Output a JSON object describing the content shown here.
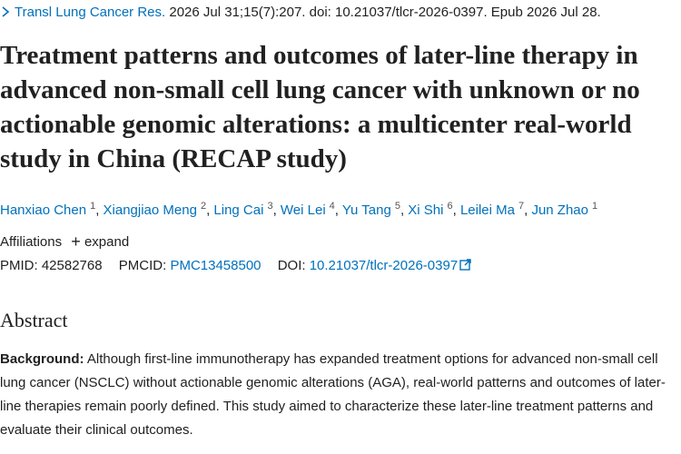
{
  "citation": {
    "journal": "Transl Lung Cancer Res.",
    "details": "2026 Jul 31;15(7):207. doi: 10.21037/tlcr-2026-0397. Epub 2026 Jul 28."
  },
  "title": "Treatment patterns and outcomes of later-line therapy in advanced non-small cell lung cancer with unknown or no actionable genomic alterations: a multicenter real-world study in China (RECAP study)",
  "authors": {
    "separator": ",",
    "list": [
      {
        "name": "Hanxiao Chen",
        "sup": "1"
      },
      {
        "name": "Xiangjiao Meng",
        "sup": "2"
      },
      {
        "name": "Ling Cai",
        "sup": "3"
      },
      {
        "name": "Wei Lei",
        "sup": "4"
      },
      {
        "name": "Yu Tang",
        "sup": "5"
      },
      {
        "name": "Xi Shi",
        "sup": "6"
      },
      {
        "name": "Leilei Ma",
        "sup": "7"
      },
      {
        "name": "Jun Zhao",
        "sup": "1"
      }
    ]
  },
  "affiliations": {
    "label": "Affiliations",
    "toggle": "expand"
  },
  "identifiers": {
    "pmid_label": "PMID:",
    "pmid": "42582768",
    "pmcid_label": "PMCID:",
    "pmcid": "PMC13458500",
    "doi_label": "DOI:",
    "doi": "10.21037/tlcr-2026-0397"
  },
  "abstract": {
    "heading": "Abstract",
    "background_label": "Background:",
    "background_text": "Although first-line immunotherapy has expanded treatment options for advanced non-small cell lung cancer (NSCLC) without actionable genomic alterations (AGA), real-world patterns and outcomes of later-line therapies remain poorly defined. This study aimed to characterize these later-line treatment patterns and evaluate their clinical outcomes."
  }
}
